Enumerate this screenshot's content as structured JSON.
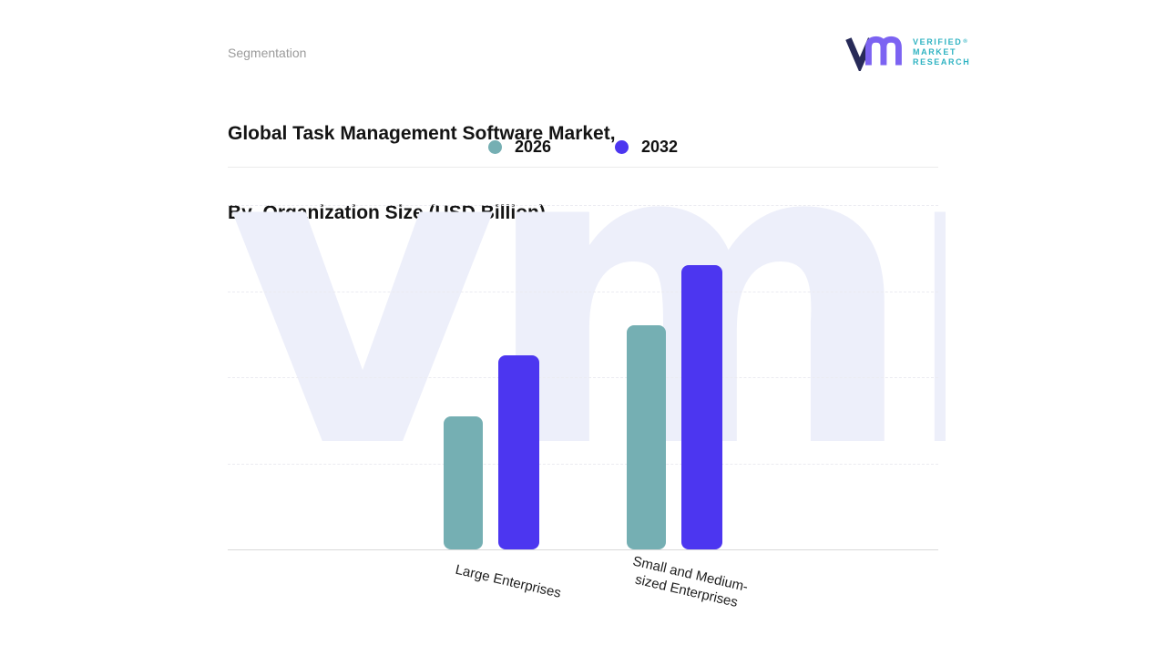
{
  "header": {
    "eyebrow": "Segmentation",
    "title_line1": "Global Task Management Software Market,",
    "title_line2": "By  Organization Size (USD Billion)"
  },
  "logo": {
    "lines": [
      "VERIFIED",
      "MARKET",
      "RESEARCH"
    ],
    "registered": "®",
    "text_color": "#2fb3c2",
    "mark_primary": "#272a58",
    "mark_secondary": "#7c63f2"
  },
  "watermark": {
    "text": "vmr",
    "color": "#edeffa"
  },
  "chart_data": {
    "type": "bar",
    "title": "Global Task Management Software Market, By Organization Size (USD Billion)",
    "units": "USD Billion",
    "categories": [
      "Large Enterprises",
      "Small and Medium-sized Enterprises"
    ],
    "categories_display": [
      [
        "Large Enterprises"
      ],
      [
        "Small and Medium-",
        "sized Enterprises"
      ]
    ],
    "series": [
      {
        "name": "2026",
        "color": "#75afb3",
        "values": [
          1.55,
          2.6
        ]
      },
      {
        "name": "2032",
        "color": "#4c36f0",
        "values": [
          2.25,
          3.3
        ]
      }
    ],
    "ylim": [
      0,
      4
    ],
    "ylabel": "",
    "xlabel": "",
    "grid": "horizontal-dashed",
    "legend_position": "top-center",
    "value_note": "Y-axis unlabeled; values estimated from gridline spacing"
  }
}
